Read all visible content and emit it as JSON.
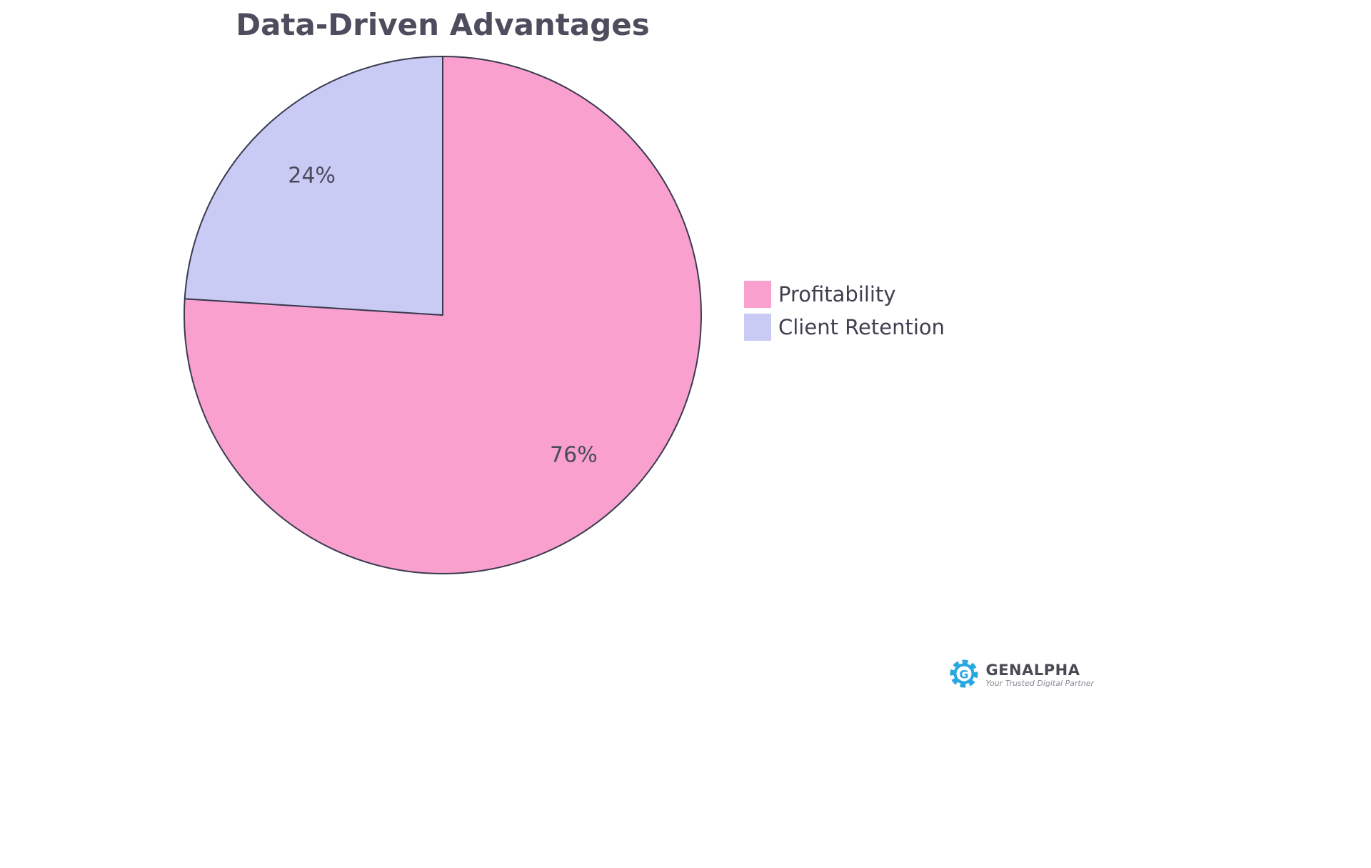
{
  "chart_data": {
    "type": "pie",
    "title": "Data-Driven Advantages",
    "series": [
      {
        "label": "Profitability",
        "value": 76,
        "pct_label": "76%",
        "color": "#F9A0CE"
      },
      {
        "label": "Client Retention",
        "value": 24,
        "pct_label": "24%",
        "color": "#C9CBF5"
      }
    ],
    "start_angle_deg": 0,
    "direction": "clockwise",
    "legend_position": "right",
    "slice_stroke": "#3A3A50",
    "label_color": "#4A4A5A"
  },
  "branding": {
    "name": "GENALPHA",
    "tagline": "Your Trusted Digital Partner",
    "accent": "#29A8E0"
  }
}
